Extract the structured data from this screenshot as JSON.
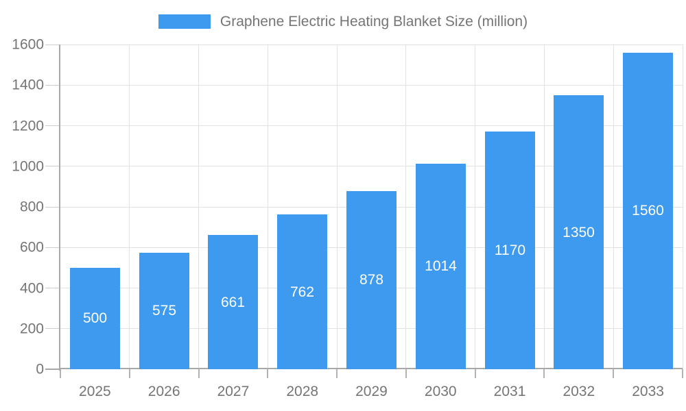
{
  "legend": {
    "label": "Graphene Electric Heating Blanket Size (million)"
  },
  "colors": {
    "bar": "#3D9AEE",
    "bar_label": "#FFFFFF",
    "axis_line": "#A8A8A8",
    "grid_line": "#E2E2E2",
    "y_tick_line": "#CDCDCD",
    "x_tick_line": "#B3B3B3",
    "axis_label_text": "#757575",
    "legend_text": "#757575",
    "background": "#FFFFFF"
  },
  "chart_data": {
    "type": "bar",
    "title": "Graphene Electric Heating Blanket Size (million)",
    "categories": [
      "2025",
      "2026",
      "2027",
      "2028",
      "2029",
      "2030",
      "2031",
      "2032",
      "2033"
    ],
    "values": [
      500,
      575,
      661,
      762,
      878,
      1014,
      1170,
      1350,
      1560
    ],
    "xlabel": "",
    "ylabel": "",
    "ylim": [
      0,
      1600
    ],
    "ytick_step": 200,
    "yticks": [
      0,
      200,
      400,
      600,
      800,
      1000,
      1200,
      1400,
      1600
    ],
    "grid": true,
    "legend_position": "top",
    "value_label_position": "inside-center",
    "value_label_color": "#FFFFFF"
  }
}
